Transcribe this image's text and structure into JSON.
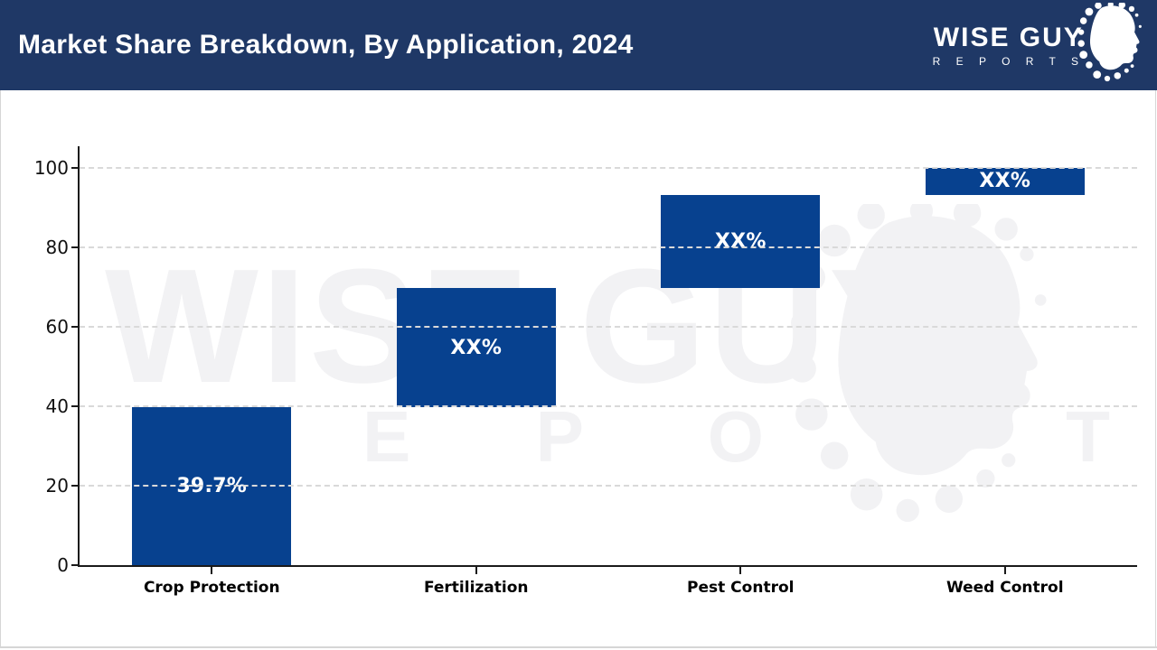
{
  "header": {
    "title": "Market Share Breakdown, By Application, 2024",
    "logo": {
      "line1": "WISE GUY",
      "line2": "R E P O R T S"
    }
  },
  "watermark": {
    "line1": "WISE GUY.",
    "line2": "R E P O R T S"
  },
  "chart_data": {
    "type": "bar",
    "subtype": "floating-waterfall",
    "title": "Market Share Breakdown, By Application, 2024",
    "categories": [
      "Crop Protection",
      "Fertilization",
      "Pest Control",
      "Weed Control"
    ],
    "segments": [
      {
        "category": "Crop Protection",
        "start": 0,
        "end": 39.7,
        "label": "39.7%"
      },
      {
        "category": "Fertilization",
        "start": 39.7,
        "end": 69.7,
        "label": "XX%"
      },
      {
        "category": "Pest Control",
        "start": 69.7,
        "end": 93.2,
        "label": "XX%"
      },
      {
        "category": "Weed Control",
        "start": 93.2,
        "end": 100,
        "label": "XX%"
      }
    ],
    "yticks": [
      0,
      20,
      40,
      60,
      80,
      100
    ],
    "ylim": [
      0,
      105.5
    ],
    "xlabel": "",
    "ylabel": "",
    "grid": "horizontal-dashed",
    "legend": "none",
    "bar_color": "#07418f",
    "background": "#ffffff"
  },
  "colors": {
    "header_bg": "#1f3866",
    "bar": "#07418f",
    "grid": "#d9d9d9",
    "axis": "#1a1a1a",
    "watermark": "#f2f2f4",
    "border": "#d6d6d6"
  }
}
